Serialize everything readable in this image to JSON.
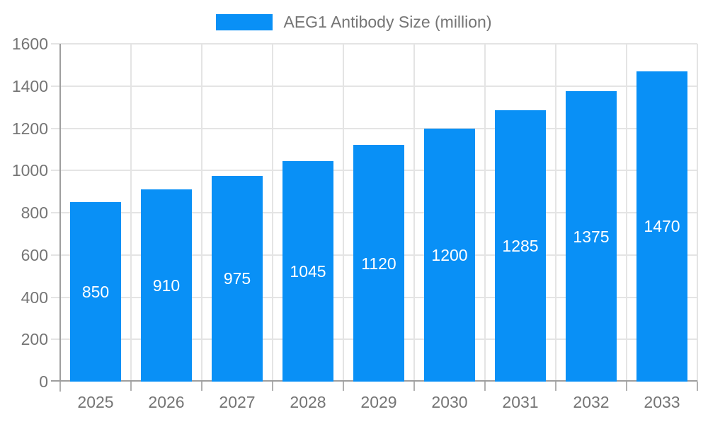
{
  "legend": {
    "label": "AEG1 Antibody Size (million)"
  },
  "chart_data": {
    "type": "bar",
    "title": "AEG1 Antibody Size (million)",
    "categories": [
      "2025",
      "2026",
      "2027",
      "2028",
      "2029",
      "2030",
      "2031",
      "2032",
      "2033"
    ],
    "values": [
      850,
      910,
      975,
      1045,
      1120,
      1200,
      1285,
      1375,
      1470
    ],
    "value_labels": [
      "850",
      "910",
      "975",
      "1045",
      "1120",
      "1200",
      "1285",
      "1375",
      "1470"
    ],
    "xlabel": "",
    "ylabel": "",
    "ylim": [
      0,
      1600
    ],
    "yticks": [
      0,
      200,
      400,
      600,
      800,
      1000,
      1200,
      1400,
      1600
    ],
    "grid": true,
    "legend_position": "top",
    "colors": {
      "bar": "#0990f6",
      "bar_value_text": "#ffffff",
      "axis_text": "#757575",
      "axis_line": "#9e9e9e",
      "gridline": "#e4e4e4",
      "tick": "#b0b0b0",
      "background": "#ffffff"
    }
  }
}
